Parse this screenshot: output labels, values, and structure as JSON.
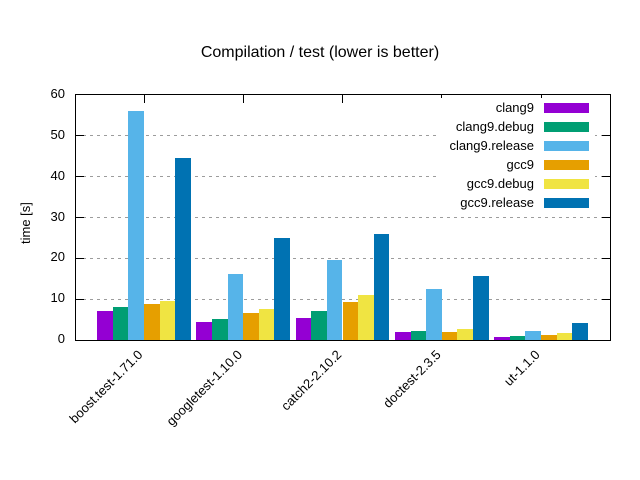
{
  "chart_data": {
    "type": "bar",
    "title": "Compilation / test (lower is better)",
    "ylabel": "time [s]",
    "xlabel": "",
    "ylim": [
      0,
      60
    ],
    "yticks": [
      0,
      10,
      20,
      30,
      40,
      50,
      60
    ],
    "grid": true,
    "legend_position": "top-right",
    "legend_opaque": true,
    "categories": [
      "boost.test-1.71.0",
      "googletest-1.10.0",
      "catch2-2.10.2",
      "doctest-2.3.5",
      "ut-1.1.0"
    ],
    "series": [
      {
        "name": "clang9",
        "color": "#9400d3",
        "values": [
          7.0,
          4.4,
          5.3,
          1.9,
          0.8
        ]
      },
      {
        "name": "clang9.debug",
        "color": "#009e73",
        "values": [
          8.1,
          5.1,
          7.2,
          2.3,
          1.0
        ]
      },
      {
        "name": "clang9.release",
        "color": "#56b4e9",
        "values": [
          56.0,
          16.2,
          19.6,
          12.4,
          2.3
        ]
      },
      {
        "name": "gcc9",
        "color": "#e69f00",
        "values": [
          8.8,
          6.7,
          9.2,
          2.0,
          1.2
        ]
      },
      {
        "name": "gcc9.debug",
        "color": "#f0e442",
        "values": [
          9.6,
          7.6,
          11.0,
          2.7,
          1.6
        ]
      },
      {
        "name": "gcc9.release",
        "color": "#0072b2",
        "values": [
          44.6,
          24.9,
          25.9,
          15.6,
          4.2
        ]
      }
    ],
    "colors": {
      "grid": "#9c9c9c",
      "border": "#000000",
      "text": "#000000",
      "background": "#ffffff"
    }
  }
}
